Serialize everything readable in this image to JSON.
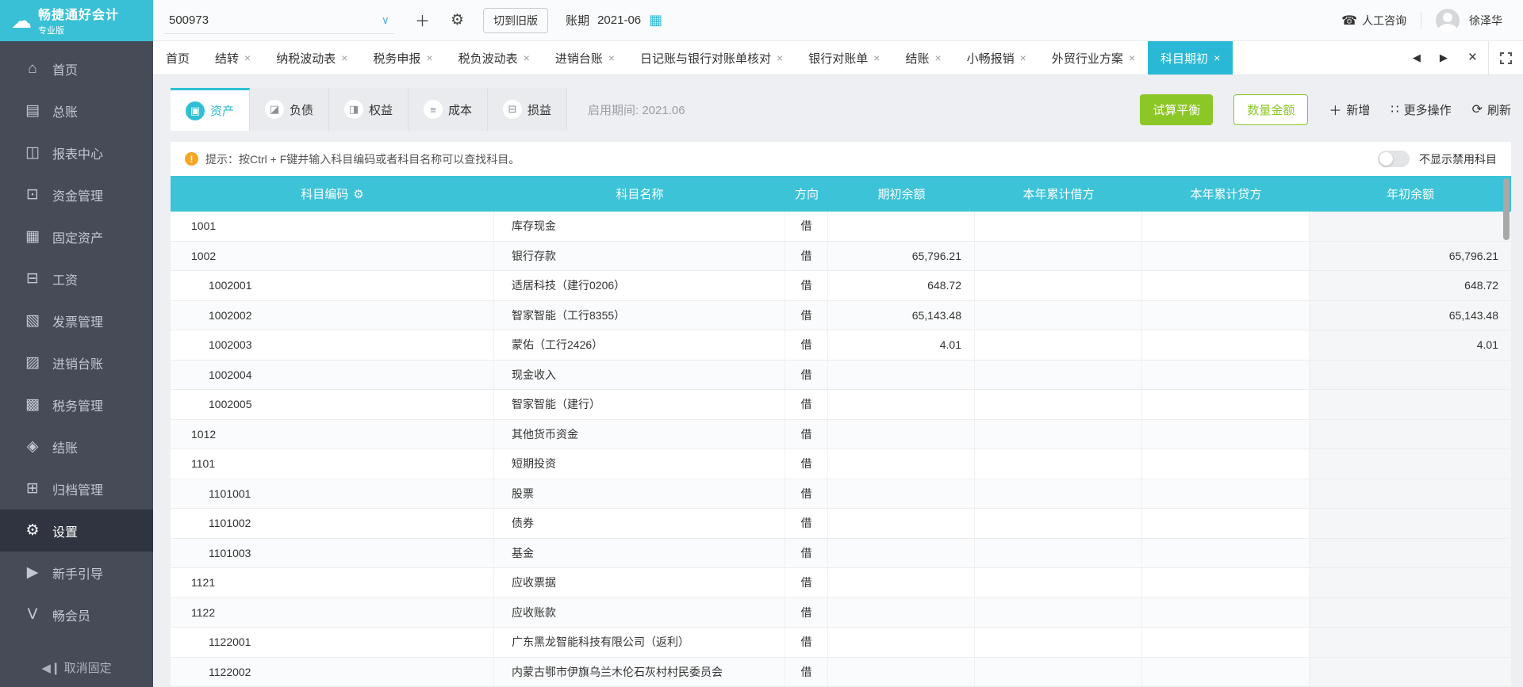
{
  "colors": {
    "brand_cyan": "#3ac0d6",
    "table_header_cyan": "#3cc3d8",
    "active_tab_cyan": "#29b8d6",
    "button_green": "#8bc727",
    "hint_orange": "#f5a623",
    "sidebar_dark": "#474b58"
  },
  "top_bar": {
    "logo_title": "畅捷通好会计",
    "logo_subtitle": "专业版",
    "company": "500973",
    "switch_old_label": "切到旧版",
    "period_label": "账期",
    "period_value": "2021-06",
    "support_label": "人工咨询",
    "username": "徐泽华"
  },
  "window_tabs": {
    "items": [
      {
        "label": "首页",
        "closable": false
      },
      {
        "label": "结转",
        "closable": true
      },
      {
        "label": "纳税波动表",
        "closable": true
      },
      {
        "label": "税务申报",
        "closable": true
      },
      {
        "label": "税负波动表",
        "closable": true
      },
      {
        "label": "进销台账",
        "closable": true
      },
      {
        "label": "日记账与银行对账单核对",
        "closable": true
      },
      {
        "label": "银行对账单",
        "closable": true
      },
      {
        "label": "结账",
        "closable": true
      },
      {
        "label": "小畅报销",
        "closable": true
      },
      {
        "label": "外贸行业方案",
        "closable": true
      },
      {
        "label": "科目期初",
        "closable": true,
        "active": true
      }
    ]
  },
  "sidebar": {
    "items": [
      {
        "label": "首页",
        "icon": "home-icon",
        "glyph": "⌂"
      },
      {
        "label": "总账",
        "icon": "general-ledger-icon",
        "glyph": "▤"
      },
      {
        "label": "报表中心",
        "icon": "report-center-icon",
        "glyph": "◫"
      },
      {
        "label": "资金管理",
        "icon": "funds-management-icon",
        "glyph": "⊡"
      },
      {
        "label": "固定资产",
        "icon": "fixed-assets-icon",
        "glyph": "▦"
      },
      {
        "label": "工资",
        "icon": "payroll-icon",
        "glyph": "⊟"
      },
      {
        "label": "发票管理",
        "icon": "invoice-management-icon",
        "glyph": "▧"
      },
      {
        "label": "进销台账",
        "icon": "purchase-sales-ledger-icon",
        "glyph": "▨"
      },
      {
        "label": "税务管理",
        "icon": "tax-management-icon",
        "glyph": "▩"
      },
      {
        "label": "结账",
        "icon": "closing-icon",
        "glyph": "◈"
      },
      {
        "label": "归档管理",
        "icon": "archive-management-icon",
        "glyph": "⊞"
      },
      {
        "label": "设置",
        "icon": "settings-icon",
        "glyph": "⚙",
        "active": true
      },
      {
        "label": "新手引导",
        "icon": "beginner-guide-icon",
        "glyph": "▶"
      },
      {
        "label": "畅会员",
        "icon": "membership-icon",
        "glyph": "Ⅴ"
      }
    ],
    "unpin_label": "◀❙ 取消固定"
  },
  "workspace": {
    "category_tabs": [
      {
        "label": "资产",
        "icon": "asset-icon",
        "glyph": "▣",
        "active": true
      },
      {
        "label": "负债",
        "icon": "liability-icon",
        "glyph": "◪"
      },
      {
        "label": "权益",
        "icon": "equity-icon",
        "glyph": "◨"
      },
      {
        "label": "成本",
        "icon": "cost-icon",
        "glyph": "≡"
      },
      {
        "label": "损益",
        "icon": "profit-loss-icon",
        "glyph": "⊟"
      }
    ],
    "enable_period": "启用期间: 2021.06",
    "buttons": {
      "trial_balance": "试算平衡",
      "quantity_amount": "数量金额",
      "add": "新增",
      "more_actions": "更多操作",
      "refresh": "刷新"
    }
  },
  "hint": {
    "text": "提示：按Ctrl + F键并输入科目编码或者科目名称可以查找科目。",
    "toggle_label": "不显示禁用科目",
    "toggle_state": "off"
  },
  "table": {
    "headers": {
      "code": "科目编码",
      "name": "科目名称",
      "dir": "方向",
      "opening": "期初余额",
      "year_debit": "本年累计借方",
      "year_credit": "本年累计贷方",
      "initial": "年初余额"
    },
    "rows": [
      {
        "code": "1001",
        "name": "库存现金",
        "dir": "借",
        "opening": "",
        "year_debit": "",
        "year_credit": "",
        "initial": ""
      },
      {
        "code": "1002",
        "name": "银行存款",
        "dir": "借",
        "opening": "65,796.21",
        "year_debit": "",
        "year_credit": "",
        "initial": "65,796.21"
      },
      {
        "code": "1002001",
        "name": "适居科技（建行0206）",
        "dir": "借",
        "opening": "648.72",
        "year_debit": "",
        "year_credit": "",
        "initial": "648.72",
        "sub": true
      },
      {
        "code": "1002002",
        "name": "智家智能（工行8355）",
        "dir": "借",
        "opening": "65,143.48",
        "year_debit": "",
        "year_credit": "",
        "initial": "65,143.48",
        "sub": true
      },
      {
        "code": "1002003",
        "name": "蒙佑（工行2426）",
        "dir": "借",
        "opening": "4.01",
        "year_debit": "",
        "year_credit": "",
        "initial": "4.01",
        "sub": true
      },
      {
        "code": "1002004",
        "name": "现金收入",
        "dir": "借",
        "opening": "",
        "year_debit": "",
        "year_credit": "",
        "initial": "",
        "sub": true
      },
      {
        "code": "1002005",
        "name": "智家智能（建行）",
        "dir": "借",
        "opening": "",
        "year_debit": "",
        "year_credit": "",
        "initial": "",
        "sub": true
      },
      {
        "code": "1012",
        "name": "其他货币资金",
        "dir": "借",
        "opening": "",
        "year_debit": "",
        "year_credit": "",
        "initial": ""
      },
      {
        "code": "1101",
        "name": "短期投资",
        "dir": "借",
        "opening": "",
        "year_debit": "",
        "year_credit": "",
        "initial": ""
      },
      {
        "code": "1101001",
        "name": "股票",
        "dir": "借",
        "opening": "",
        "year_debit": "",
        "year_credit": "",
        "initial": "",
        "sub": true
      },
      {
        "code": "1101002",
        "name": "债券",
        "dir": "借",
        "opening": "",
        "year_debit": "",
        "year_credit": "",
        "initial": "",
        "sub": true
      },
      {
        "code": "1101003",
        "name": "基金",
        "dir": "借",
        "opening": "",
        "year_debit": "",
        "year_credit": "",
        "initial": "",
        "sub": true
      },
      {
        "code": "1121",
        "name": "应收票据",
        "dir": "借",
        "opening": "",
        "year_debit": "",
        "year_credit": "",
        "initial": ""
      },
      {
        "code": "1122",
        "name": "应收账款",
        "dir": "借",
        "opening": "",
        "year_debit": "",
        "year_credit": "",
        "initial": ""
      },
      {
        "code": "1122001",
        "name": "广东黑龙智能科技有限公司（返利）",
        "dir": "借",
        "opening": "",
        "year_debit": "",
        "year_credit": "",
        "initial": "",
        "sub": true
      },
      {
        "code": "1122002",
        "name": "内蒙古鄂市伊旗乌兰木伦石灰村村民委员会",
        "dir": "借",
        "opening": "",
        "year_debit": "",
        "year_credit": "",
        "initial": "",
        "sub": true
      }
    ]
  }
}
